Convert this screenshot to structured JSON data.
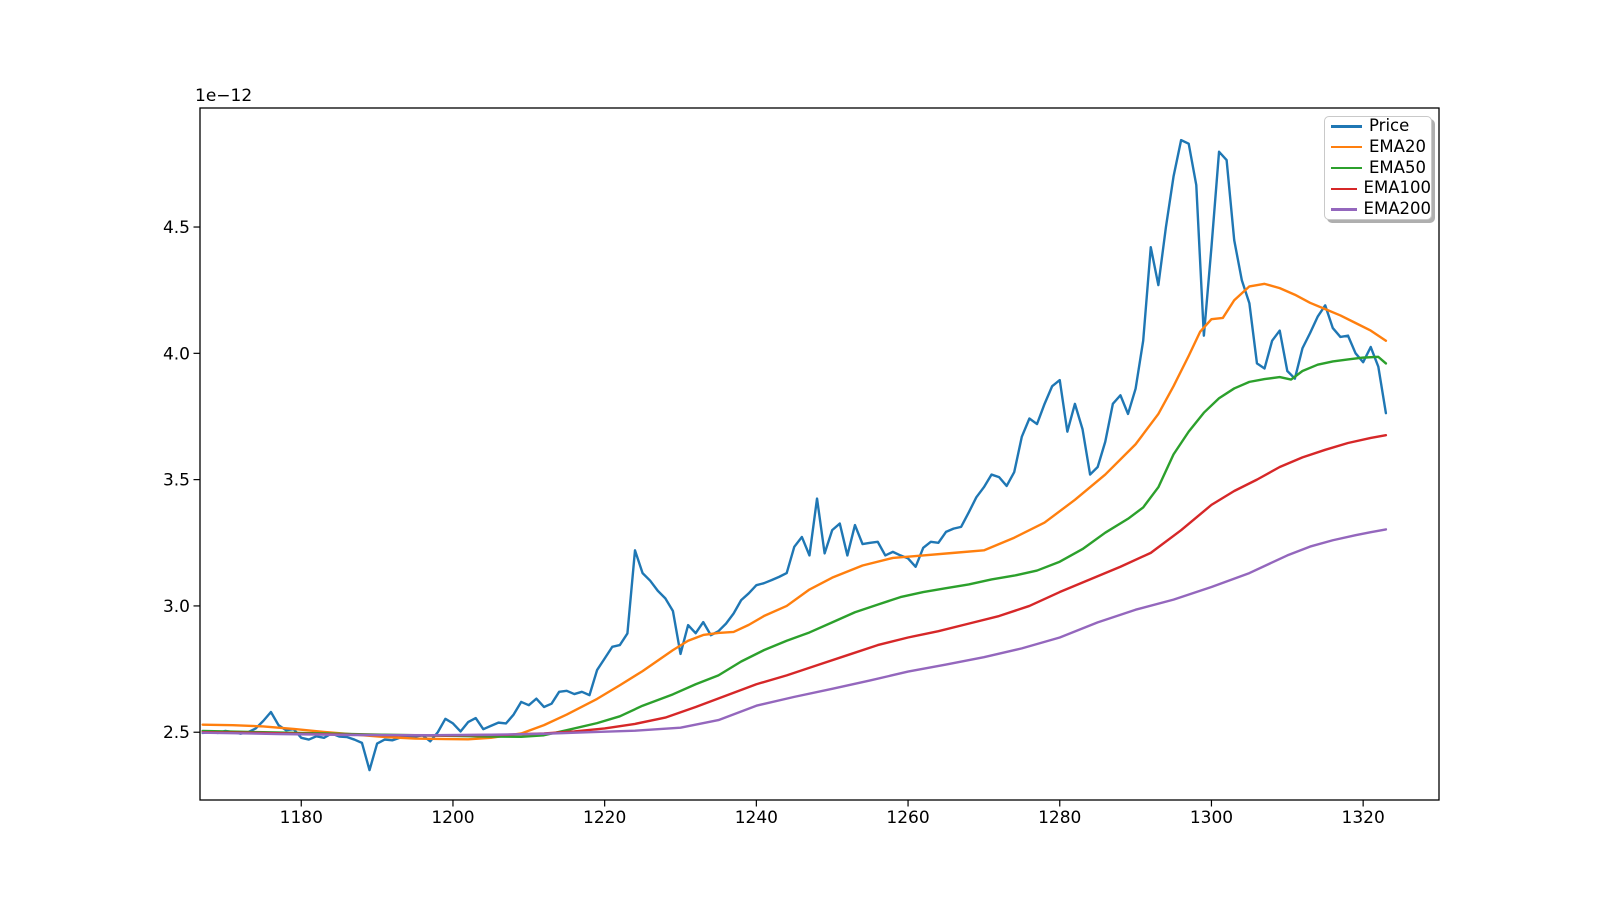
{
  "figure": {
    "background": "#ffffff",
    "offset_label": "1e−12"
  },
  "chart_data": {
    "type": "line",
    "title": "",
    "xlabel": "",
    "ylabel": "",
    "grid": false,
    "legend_position": "upper right",
    "offset_text": "1e−12",
    "y_scale_factor": "1e-12",
    "xlim": [
      1166.65,
      1330.0
    ],
    "ylim": [
      2.2317,
      4.9712
    ],
    "x_ticks": [
      1180,
      1200,
      1220,
      1240,
      1260,
      1280,
      1300,
      1320
    ],
    "x_tick_labels": [
      "1180",
      "1200",
      "1220",
      "1240",
      "1260",
      "1280",
      "1300",
      "1320"
    ],
    "y_ticks": [
      2.5,
      3.0,
      3.5,
      4.0,
      4.5
    ],
    "y_tick_labels": [
      "2.5",
      "3.0",
      "3.5",
      "4.0",
      "4.5"
    ],
    "axis_color": "#000000",
    "series": [
      {
        "name": "Price",
        "color": "#1f77b4",
        "x_start": 1167,
        "x_step": 1,
        "y": [
          2.497,
          2.5,
          2.497,
          2.505,
          2.5,
          2.494,
          2.5,
          2.515,
          2.545,
          2.58,
          2.528,
          2.508,
          2.512,
          2.478,
          2.471,
          2.484,
          2.478,
          2.495,
          2.483,
          2.481,
          2.471,
          2.458,
          2.35,
          2.455,
          2.471,
          2.468,
          2.478,
          2.481,
          2.483,
          2.488,
          2.464,
          2.5,
          2.553,
          2.535,
          2.503,
          2.54,
          2.556,
          2.512,
          2.525,
          2.538,
          2.535,
          2.57,
          2.62,
          2.607,
          2.633,
          2.6,
          2.613,
          2.66,
          2.664,
          2.651,
          2.66,
          2.647,
          2.746,
          2.792,
          2.838,
          2.845,
          2.891,
          3.22,
          3.13,
          3.1,
          3.06,
          3.03,
          2.98,
          2.81,
          2.924,
          2.892,
          2.936,
          2.884,
          2.9,
          2.93,
          2.97,
          3.023,
          3.05,
          3.082,
          3.09,
          3.102,
          3.115,
          3.13,
          3.234,
          3.273,
          3.2,
          3.425,
          3.208,
          3.3,
          3.326,
          3.2,
          3.32,
          3.245,
          3.25,
          3.254,
          3.2,
          3.214,
          3.2,
          3.188,
          3.155,
          3.23,
          3.254,
          3.25,
          3.293,
          3.306,
          3.313,
          3.37,
          3.43,
          3.47,
          3.52,
          3.51,
          3.475,
          3.53,
          3.67,
          3.742,
          3.72,
          3.8,
          3.87,
          3.894,
          3.69,
          3.8,
          3.7,
          3.52,
          3.55,
          3.65,
          3.8,
          3.834,
          3.76,
          3.86,
          4.05,
          4.42,
          4.27,
          4.5,
          4.7,
          4.844,
          4.83,
          4.666,
          4.07,
          4.42,
          4.798,
          4.765,
          4.448,
          4.29,
          4.198,
          3.96,
          3.94,
          4.05,
          4.09,
          3.93,
          3.9,
          4.02,
          4.08,
          4.145,
          4.19,
          4.1,
          4.065,
          4.07,
          4.0,
          3.965,
          4.025,
          3.947,
          3.763
        ]
      },
      {
        "name": "EMA20",
        "color": "#ff7f0e",
        "x": [
          1167,
          1171,
          1175,
          1179,
          1183,
          1187,
          1191,
          1195,
          1199,
          1202,
          1205,
          1209,
          1212,
          1215,
          1219,
          1222,
          1225,
          1229,
          1231,
          1233,
          1235,
          1237,
          1239,
          1241,
          1244,
          1247,
          1250,
          1254,
          1258,
          1262,
          1266,
          1270,
          1274,
          1278,
          1282,
          1286,
          1290,
          1293,
          1295,
          1297,
          1298.5,
          1300,
          1301.5,
          1303,
          1305,
          1307,
          1309,
          1311,
          1313,
          1315,
          1317,
          1319,
          1321,
          1323
        ],
        "y": [
          2.53,
          2.528,
          2.523,
          2.513,
          2.501,
          2.491,
          2.481,
          2.475,
          2.473,
          2.472,
          2.478,
          2.495,
          2.528,
          2.57,
          2.632,
          2.686,
          2.742,
          2.825,
          2.862,
          2.885,
          2.893,
          2.897,
          2.925,
          2.96,
          3.0,
          3.065,
          3.112,
          3.16,
          3.19,
          3.2,
          3.21,
          3.22,
          3.27,
          3.33,
          3.42,
          3.52,
          3.64,
          3.76,
          3.87,
          3.99,
          4.085,
          4.135,
          4.14,
          4.21,
          4.265,
          4.275,
          4.258,
          4.232,
          4.2,
          4.175,
          4.15,
          4.12,
          4.09,
          4.05
        ]
      },
      {
        "name": "EMA50",
        "color": "#2ca02c",
        "x": [
          1167,
          1175,
          1183,
          1191,
          1199,
          1205,
          1209,
          1212,
          1215,
          1219,
          1222,
          1225,
          1229,
          1232,
          1235,
          1238,
          1241,
          1244,
          1247,
          1250,
          1253,
          1256,
          1259,
          1262,
          1265,
          1268,
          1271,
          1274,
          1277,
          1280,
          1283,
          1286,
          1289,
          1291,
          1293,
          1295,
          1297,
          1299,
          1301,
          1303,
          1305,
          1307,
          1309,
          1310.5,
          1312,
          1314,
          1316,
          1318,
          1320,
          1322,
          1323
        ],
        "y": [
          2.505,
          2.5,
          2.495,
          2.49,
          2.486,
          2.483,
          2.482,
          2.488,
          2.508,
          2.536,
          2.563,
          2.605,
          2.65,
          2.69,
          2.725,
          2.78,
          2.825,
          2.862,
          2.895,
          2.935,
          2.975,
          3.005,
          3.035,
          3.055,
          3.07,
          3.085,
          3.105,
          3.12,
          3.14,
          3.175,
          3.225,
          3.29,
          3.345,
          3.39,
          3.47,
          3.6,
          3.69,
          3.765,
          3.822,
          3.861,
          3.887,
          3.898,
          3.906,
          3.896,
          3.93,
          3.955,
          3.968,
          3.976,
          3.983,
          3.986,
          3.96
        ]
      },
      {
        "name": "EMA100",
        "color": "#d62728",
        "x": [
          1167,
          1175,
          1183,
          1191,
          1199,
          1207,
          1212,
          1216,
          1220,
          1224,
          1228,
          1232,
          1236,
          1240,
          1244,
          1248,
          1252,
          1256,
          1260,
          1264,
          1268,
          1272,
          1276,
          1280,
          1284,
          1288,
          1292,
          1296,
          1300,
          1303,
          1306,
          1309,
          1312,
          1315,
          1318,
          1321,
          1323
        ],
        "y": [
          2.5,
          2.497,
          2.492,
          2.488,
          2.487,
          2.49,
          2.495,
          2.503,
          2.515,
          2.533,
          2.558,
          2.6,
          2.645,
          2.69,
          2.725,
          2.765,
          2.805,
          2.845,
          2.875,
          2.9,
          2.93,
          2.96,
          3.0,
          3.055,
          3.105,
          3.155,
          3.21,
          3.3,
          3.4,
          3.455,
          3.5,
          3.55,
          3.588,
          3.618,
          3.645,
          3.665,
          3.676
        ]
      },
      {
        "name": "EMA200",
        "color": "#9467bd",
        "x": [
          1167,
          1177,
          1187,
          1197,
          1205,
          1212,
          1218,
          1224,
          1230,
          1235,
          1240,
          1245,
          1250,
          1255,
          1260,
          1265,
          1270,
          1275,
          1280,
          1285,
          1290,
          1295,
          1300,
          1305,
          1310,
          1313,
          1316,
          1319,
          1321,
          1323
        ],
        "y": [
          2.498,
          2.493,
          2.489,
          2.488,
          2.49,
          2.494,
          2.5,
          2.506,
          2.518,
          2.548,
          2.605,
          2.64,
          2.672,
          2.705,
          2.74,
          2.768,
          2.797,
          2.832,
          2.875,
          2.935,
          2.985,
          3.025,
          3.075,
          3.13,
          3.2,
          3.235,
          3.26,
          3.28,
          3.292,
          3.303
        ]
      }
    ]
  },
  "legend": {
    "items": [
      {
        "label": "Price",
        "color": "#1f77b4"
      },
      {
        "label": "EMA20",
        "color": "#ff7f0e"
      },
      {
        "label": "EMA50",
        "color": "#2ca02c"
      },
      {
        "label": "EMA100",
        "color": "#d62728"
      },
      {
        "label": "EMA200",
        "color": "#9467bd"
      }
    ]
  }
}
